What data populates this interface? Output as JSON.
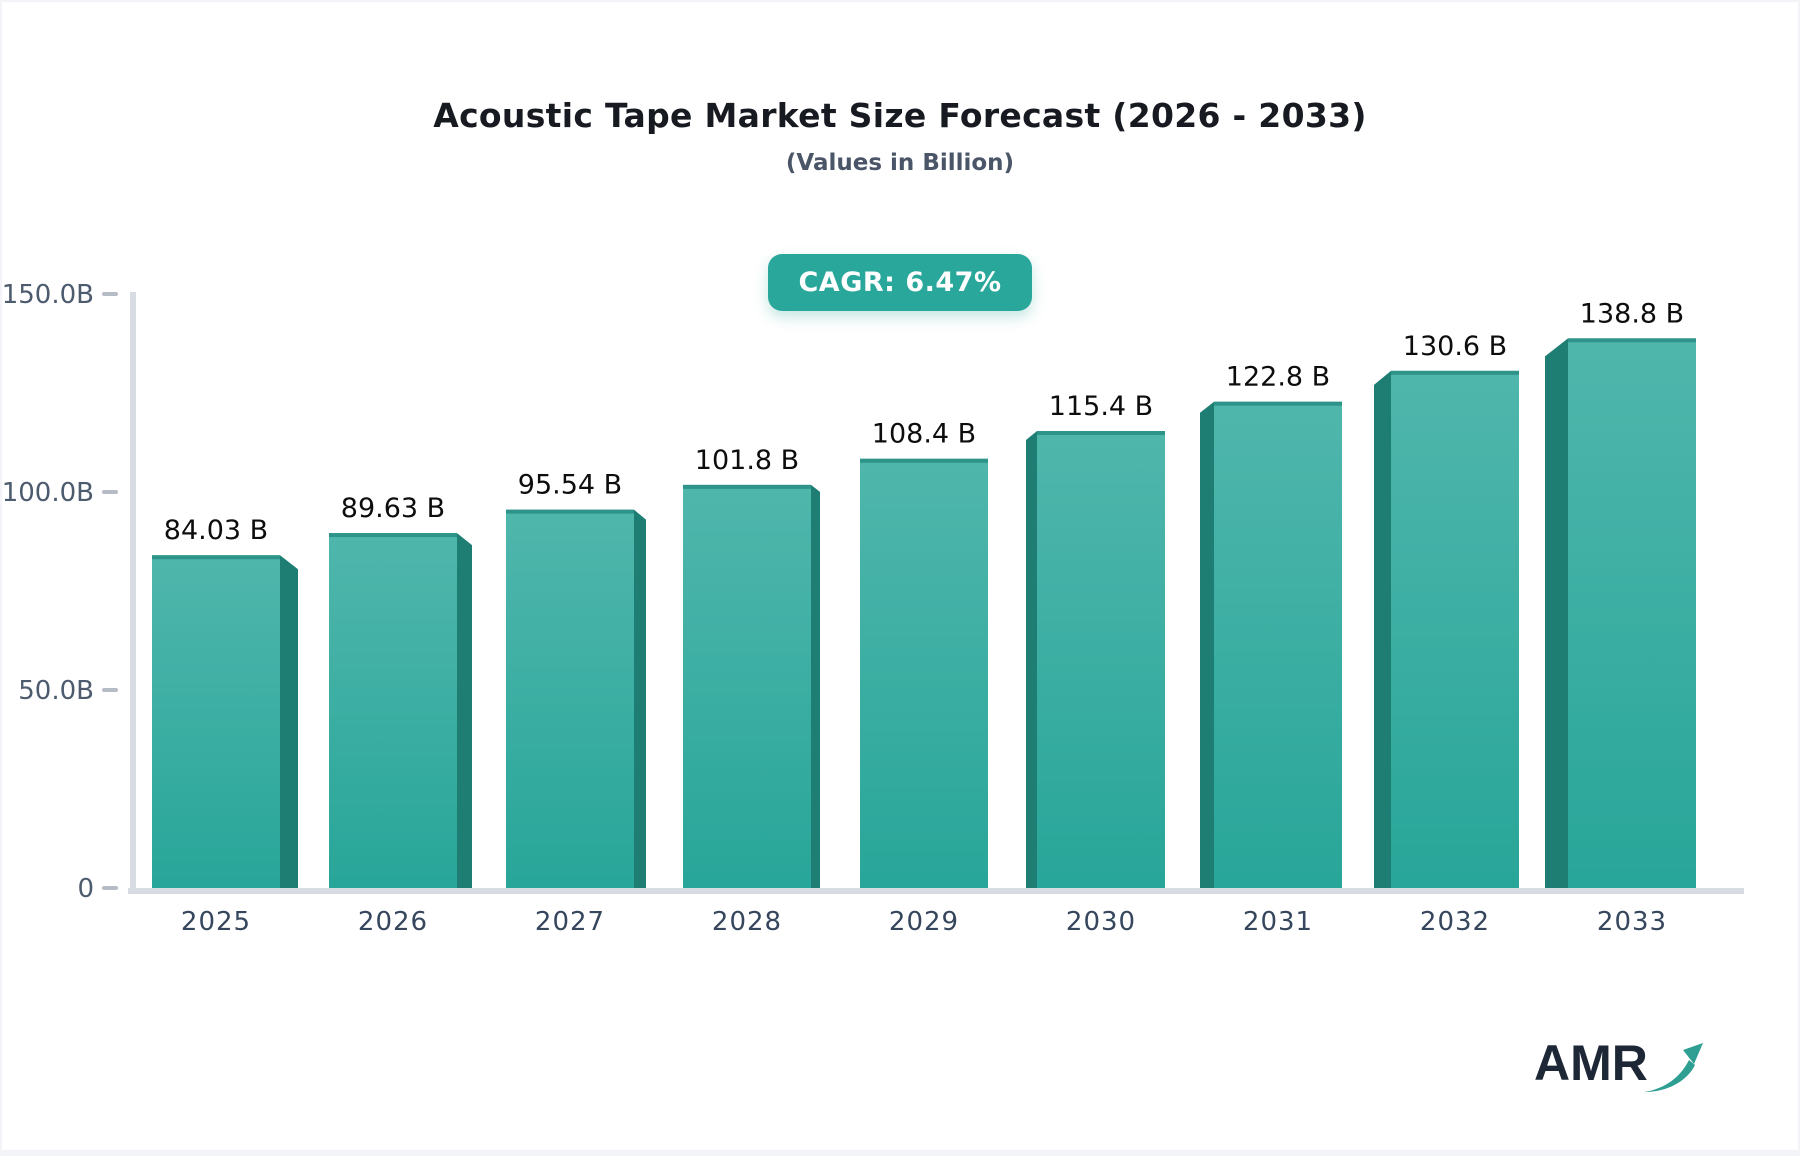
{
  "page": {
    "canvas_bg": "#ffffff",
    "frame_bg": "#f7f8fb"
  },
  "header": {
    "title": "Acoustic Tape Market Size Forecast (2026 - 2033)",
    "subtitle": "(Values in Billion)",
    "cagr_label": "CAGR: 6.47%",
    "accent_color": "#2aa79b"
  },
  "chart_data": {
    "type": "bar",
    "title": "Acoustic Tape Market Size Forecast (2026 - 2033)",
    "subtitle": "(Values in Billion)",
    "cagr_text": "CAGR: 6.47%",
    "unit": "Billion USD",
    "categories": [
      "2025",
      "2026",
      "2027",
      "2028",
      "2029",
      "2030",
      "2031",
      "2032",
      "2033"
    ],
    "values": [
      84.03,
      89.63,
      95.54,
      101.8,
      108.4,
      115.4,
      122.8,
      130.6,
      138.8
    ],
    "value_labels": [
      "84.03 B",
      "89.63 B",
      "95.54 B",
      "101.8 B",
      "108.4 B",
      "115.4 B",
      "122.8 B",
      "130.6 B",
      "138.8 B"
    ],
    "y_ticks": [
      {
        "value": 0,
        "label": "0"
      },
      {
        "value": 50,
        "label": "50.0B"
      },
      {
        "value": 100,
        "label": "100.0B"
      },
      {
        "value": 150,
        "label": "150.0B"
      }
    ],
    "ylim": [
      0,
      150
    ],
    "grid": false,
    "legend": null,
    "style": {
      "bar_gradient_top": "#50b6ac",
      "bar_gradient_bottom": "#28a699",
      "bar_top_edge": "#2e9489",
      "bar_side": "#1f7e74",
      "axis_line": "#d8dbe1",
      "tick_dash": "#b6bcc6",
      "tick_label_color": "#4d5b6e",
      "category_label_color": "#36465c",
      "value_label_color": "#0d0d0d"
    }
  },
  "branding": {
    "logo_text": "AMR",
    "logo_color": "#1d2736",
    "arrow_color": "#2f9e93"
  }
}
